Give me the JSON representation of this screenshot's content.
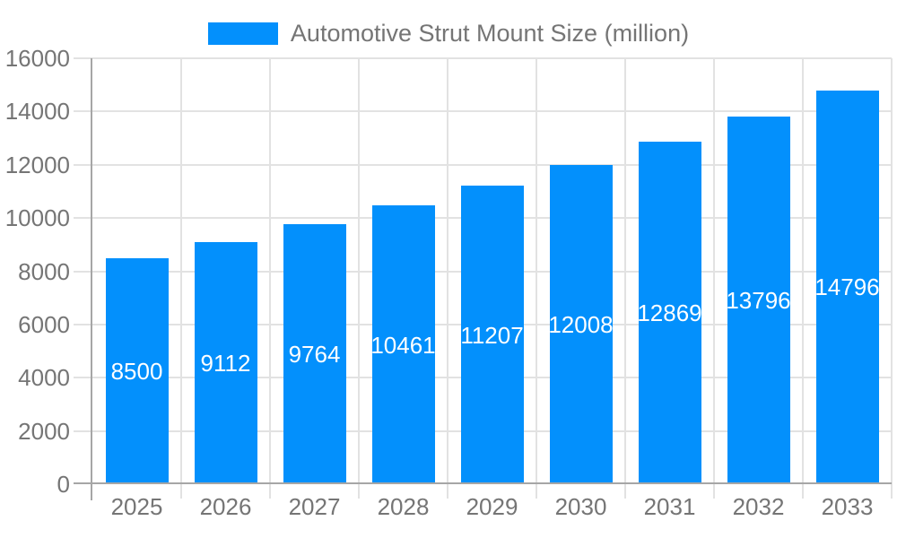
{
  "chart_data": {
    "type": "bar",
    "title": "Automotive Strut Mount Size (million)",
    "legend_position": "top",
    "categories": [
      "2025",
      "2026",
      "2027",
      "2028",
      "2029",
      "2030",
      "2031",
      "2032",
      "2033"
    ],
    "values": [
      8500,
      9112,
      9764,
      10461,
      11207,
      12008,
      12869,
      13796,
      14796
    ],
    "value_labels": [
      "8500",
      "9112",
      "9764",
      "10461",
      "11207",
      "12008",
      "12869",
      "13796",
      "14796"
    ],
    "xlabel": "",
    "ylabel": "",
    "ylim": [
      0,
      16000
    ],
    "ytick_step": 2000,
    "y_ticks": [
      "0",
      "2000",
      "4000",
      "6000",
      "8000",
      "10000",
      "12000",
      "14000",
      "16000"
    ],
    "grid": true,
    "colors": {
      "bar": "#0390fc",
      "value_label": "#ffffff",
      "axis_text": "#757575",
      "grid_line": "#e2e2e2",
      "axis_line": "#a6a6a6",
      "background": "#ffffff"
    }
  }
}
